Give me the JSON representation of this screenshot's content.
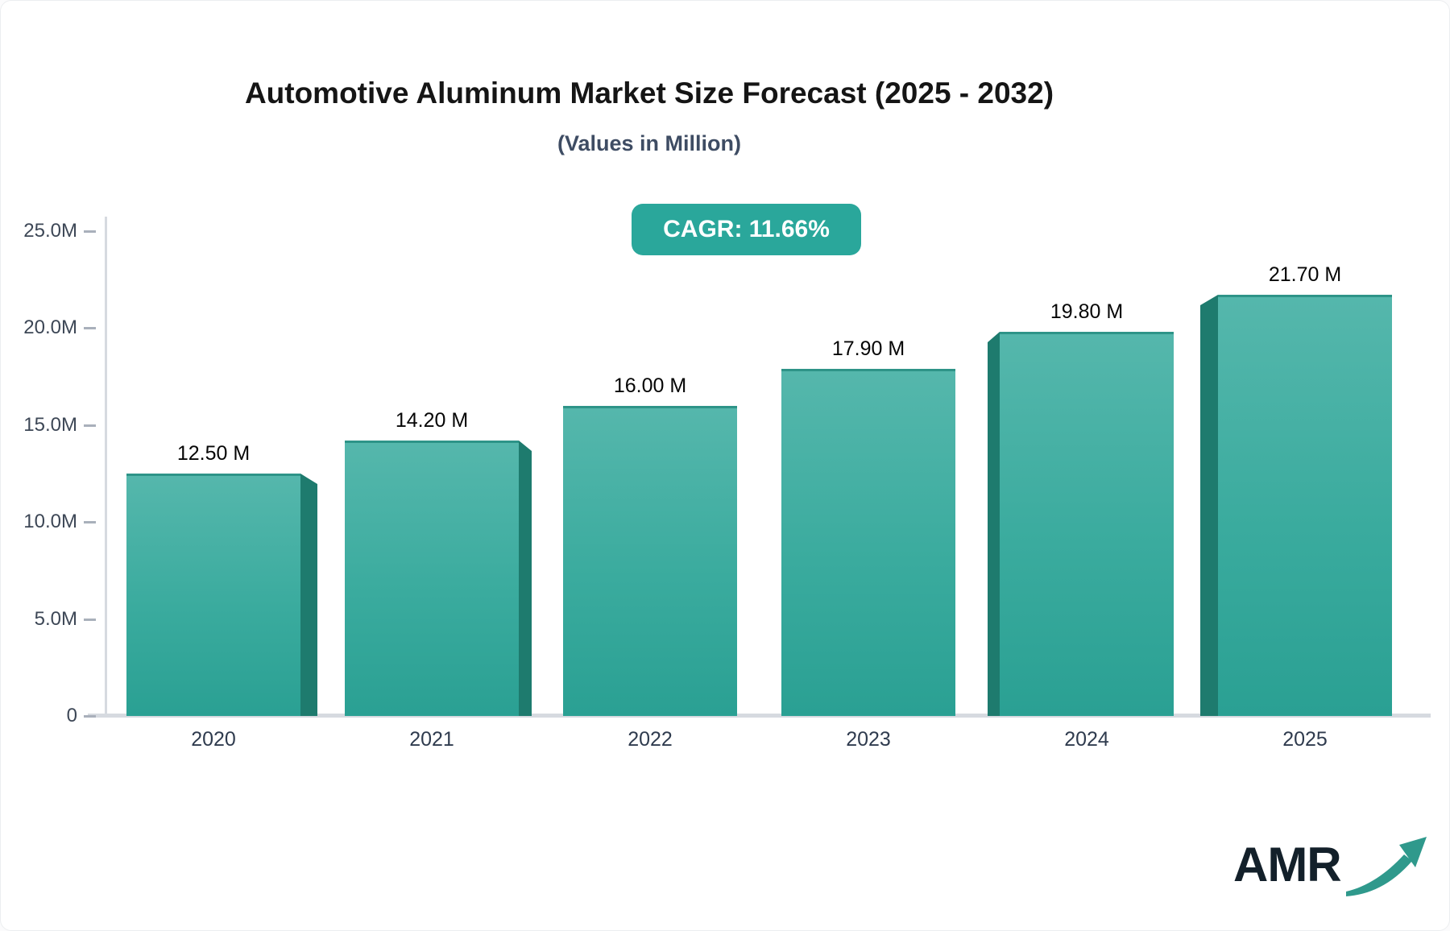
{
  "header": {
    "title": "Automotive Aluminum Market Size Forecast (2025 - 2032)",
    "subtitle": "(Values in Million)",
    "badge_label": "CAGR: 11.66%"
  },
  "cagr": {
    "value": "11.66%",
    "badge_bg_color": "#2aa79b"
  },
  "logo": {
    "text": "AMR",
    "text_color": "#13202a",
    "arrow_color": "#2f998c"
  },
  "chart_data": {
    "type": "bar",
    "title": "Automotive Aluminum Market Size Forecast (2025 - 2032)",
    "subtitle": "(Values in Million)",
    "unit": "Million",
    "categories": [
      "2020",
      "2021",
      "2022",
      "2023",
      "2024",
      "2025"
    ],
    "values": [
      12.5,
      14.2,
      16.0,
      17.9,
      19.8,
      21.7
    ],
    "value_labels": [
      "12.50 M",
      "14.20 M",
      "16.00 M",
      "17.90 M",
      "19.80 M",
      "21.70 M"
    ],
    "xlabel": "",
    "ylabel": "",
    "ylim": [
      0,
      25
    ],
    "yticks": [
      {
        "label": "25.0M",
        "value": 25
      },
      {
        "label": "20.0M",
        "value": 20
      },
      {
        "label": "15.0M",
        "value": 15
      },
      {
        "label": "10.0M",
        "value": 10
      },
      {
        "label": "5.0M",
        "value": 5
      },
      {
        "label": "0",
        "value": 0
      }
    ],
    "grid": false,
    "legend": null,
    "bar_face_top_color": "#55b7ac",
    "bar_face_bottom_color": "#2aa093",
    "bar_side_color": "#1e7b6e",
    "side_panel_direction": [
      "right",
      "right",
      "none",
      "none",
      "left",
      "left"
    ]
  }
}
